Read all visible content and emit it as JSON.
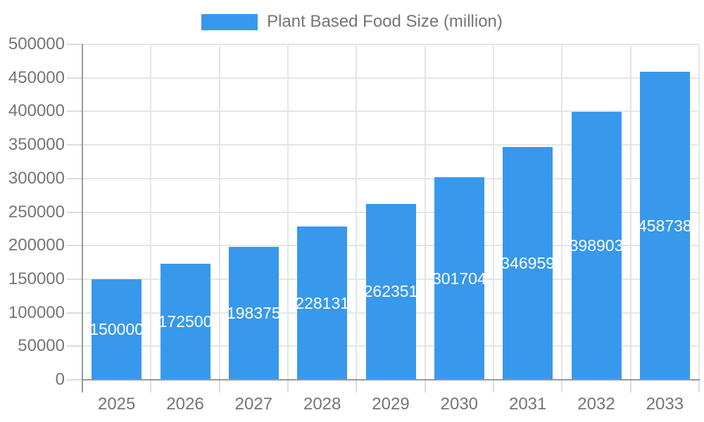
{
  "chart_data": {
    "type": "bar",
    "title": "Plant Based Food Size (million)",
    "legend": [
      "Plant Based Food Size (million)"
    ],
    "legend_position": "top-center",
    "categories": [
      "2025",
      "2026",
      "2027",
      "2028",
      "2029",
      "2030",
      "2031",
      "2032",
      "2033"
    ],
    "values": [
      150000,
      172500,
      198375,
      228131,
      262351,
      301704,
      346959,
      398903,
      458738
    ],
    "bar_labels": [
      "150000",
      "172500",
      "198375",
      "228131",
      "262351",
      "301704",
      "346959",
      "398903",
      "458738"
    ],
    "xlabel": "",
    "ylabel": "",
    "ylim": [
      0,
      500000
    ],
    "ytick_step": 50000,
    "ytick_labels": [
      "0",
      "50000",
      "100000",
      "150000",
      "200000",
      "250000",
      "300000",
      "350000",
      "400000",
      "450000",
      "500000"
    ],
    "grid": true,
    "colors": {
      "bar": "#3898EC",
      "bar_label": "#FFFFFF",
      "axis_line": "#999999",
      "gridline": "#E6E6E6",
      "tick": "#DCDCDC",
      "text": "#757575",
      "background": "#FFFFFF"
    }
  }
}
